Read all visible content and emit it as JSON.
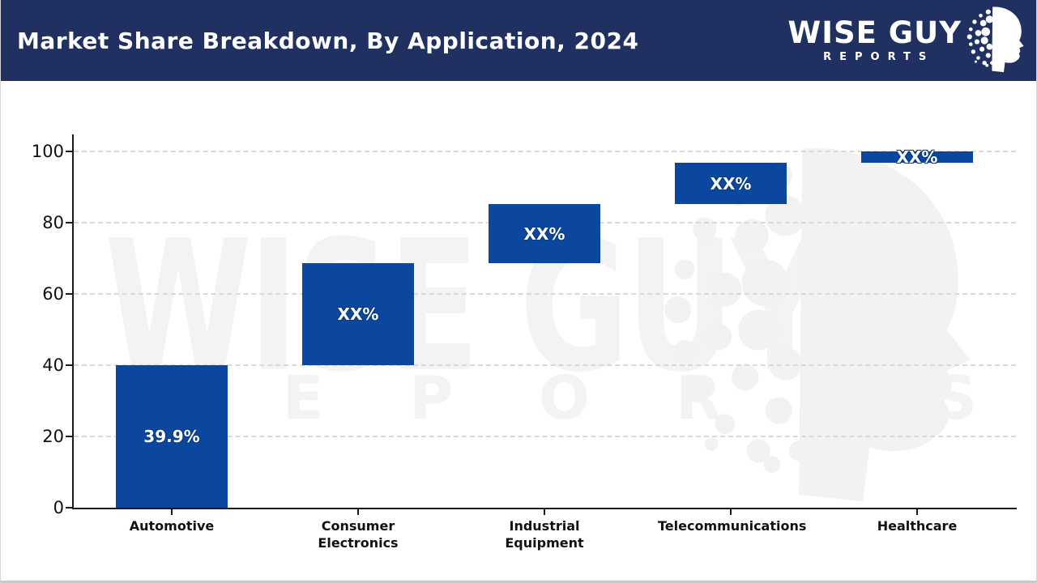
{
  "header": {
    "title": "Market Share Breakdown, By Application, 2024",
    "logo_primary": "WISE GUY",
    "logo_secondary": "REPORTS"
  },
  "watermark": {
    "primary": "WISE GUY",
    "secondary": "R E P O R T S"
  },
  "chart_data": {
    "type": "bar",
    "variant": "waterfall",
    "title": "Market Share Breakdown, By Application, 2024",
    "categories": [
      "Automotive",
      "Consumer Electronics",
      "Industrial Equipment",
      "Telecommunications",
      "Healthcare"
    ],
    "segments": [
      {
        "category": "Automotive",
        "label": "39.9%",
        "start": 0,
        "end": 39.9
      },
      {
        "category": "Consumer Electronics",
        "label": "XX%",
        "start": 39.9,
        "end": 68.6
      },
      {
        "category": "Industrial Equipment",
        "label": "XX%",
        "start": 68.6,
        "end": 85.2
      },
      {
        "category": "Telecommunications",
        "label": "XX%",
        "start": 85.2,
        "end": 96.8
      },
      {
        "category": "Healthcare",
        "label": "XX%",
        "start": 96.8,
        "end": 100
      }
    ],
    "visible_values": {
      "Automotive": "39.9%"
    },
    "masked_label": "XX%",
    "ylim": [
      0,
      100
    ],
    "yticks": [
      0,
      20,
      40,
      60,
      80,
      100
    ],
    "xlabel": "",
    "ylabel": "",
    "grid": "horizontal-dashed",
    "legend": "none",
    "colors": {
      "bar": "#0b479f",
      "bar_label": "#ffffff",
      "bar_label_outline": "#0a3c85",
      "grid": "#d9d9d9",
      "axis": "#1a1a1a",
      "header_bg": "#203161",
      "header_text": "#ffffff",
      "watermark": "#f3f3f3"
    }
  }
}
